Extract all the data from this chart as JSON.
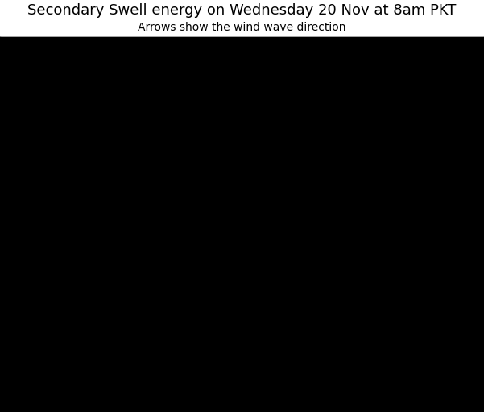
{
  "title": "Secondary Swell energy on Wednesday 20 Nov at 8am PKT",
  "subtitle": "Arrows show the wind wave direction",
  "title_fontsize": 13,
  "subtitle_fontsize": 10,
  "lon_min": 43.0,
  "lon_max": 83.0,
  "lat_min": 14.0,
  "lat_max": 42.0,
  "fig_width": 6.01,
  "fig_height": 5.11,
  "dpi": 100,
  "title_bg_color": "#ffffff",
  "border_color": "#000000",
  "ocean_color": "#000000",
  "land_color_light": "#b0b0b0",
  "land_color_dark": "#808080"
}
